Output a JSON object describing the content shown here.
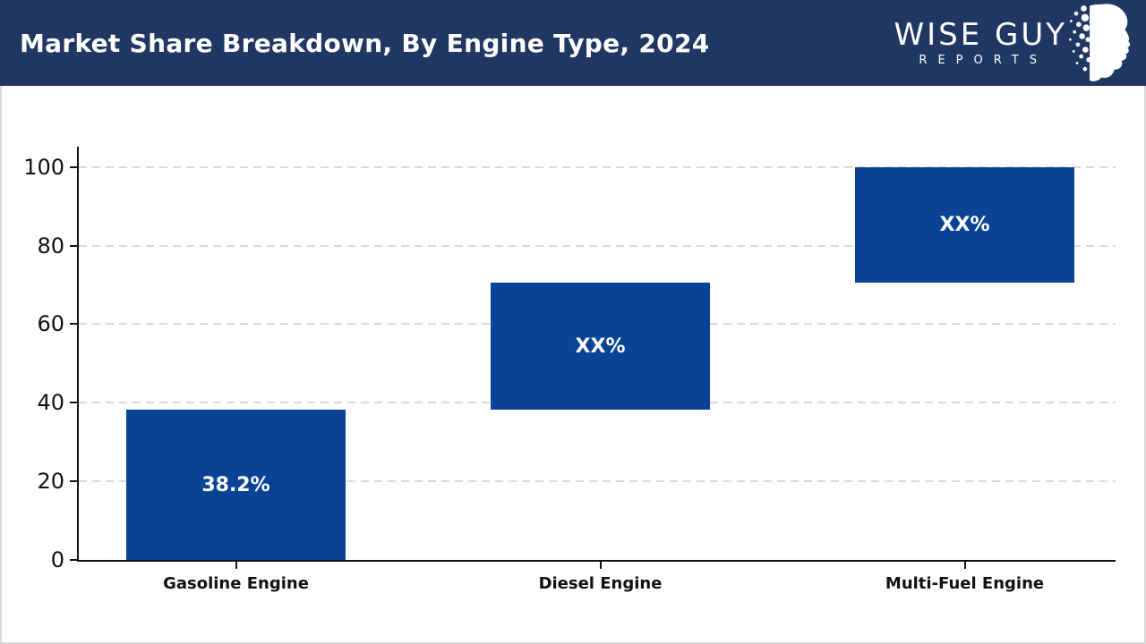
{
  "header": {
    "title": "Market Share Breakdown, By Engine Type, 2024",
    "background_color": "#203763",
    "logo": {
      "wordmark": "WISE GUY",
      "subtext": "REPORTS"
    }
  },
  "watermark": {
    "wordmark": "WISE GUY",
    "subtext": "REPORTS"
  },
  "chart_data": {
    "type": "bar",
    "variant": "waterfall",
    "title": "Market Share Breakdown, By Engine Type, 2024",
    "categories": [
      "Gasoline Engine",
      "Diesel Engine",
      "Multi-Fuel Engine"
    ],
    "bars": [
      {
        "category": "Gasoline Engine",
        "start": 0,
        "end": 38.2,
        "label": "38.2%"
      },
      {
        "category": "Diesel Engine",
        "start": 38.2,
        "end": 70.6,
        "label": "XX%"
      },
      {
        "category": "Multi-Fuel Engine",
        "start": 70.6,
        "end": 100,
        "label": "XX%"
      }
    ],
    "displayed_values": [
      "38.2%",
      "XX%",
      "XX%"
    ],
    "ylim": [
      0,
      100
    ],
    "yticks": [
      0,
      20,
      40,
      60,
      80,
      100
    ],
    "xlabel": "",
    "ylabel": "",
    "grid": "horizontal-dashed",
    "legend": "none",
    "bar_color": "#0a4396",
    "bar_label_color": "#ffffff",
    "axis_color": "#111111",
    "gridline_color": "#d9d9d9"
  }
}
